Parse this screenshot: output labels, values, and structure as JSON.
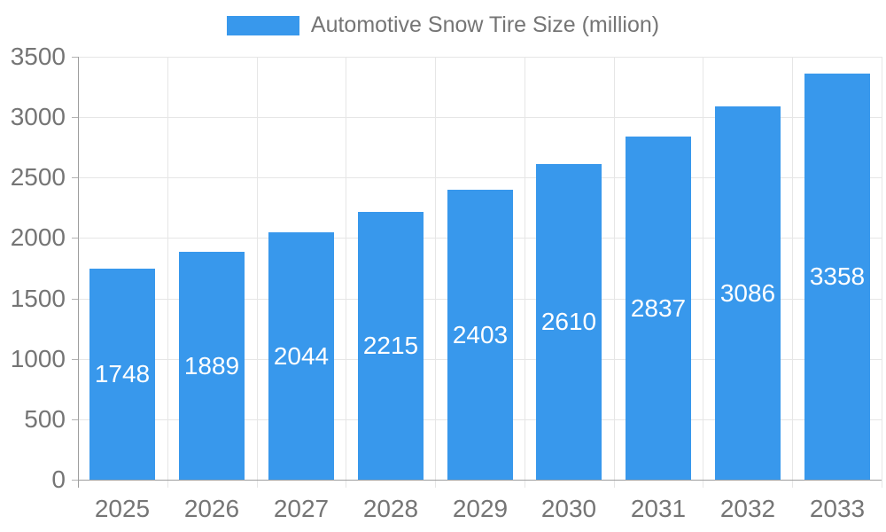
{
  "legend": {
    "label": "Automotive Snow Tire Size (million)",
    "swatch_color": "#3898ec"
  },
  "chart_data": {
    "type": "bar",
    "title": "Automotive Snow Tire Size (million)",
    "categories": [
      "2025",
      "2026",
      "2027",
      "2028",
      "2029",
      "2030",
      "2031",
      "2032",
      "2033"
    ],
    "series": [
      {
        "name": "Automotive Snow Tire Size (million)",
        "color": "#3898ec",
        "values": [
          1748,
          1889,
          2044,
          2215,
          2403,
          2610,
          2837,
          3086,
          3358
        ]
      }
    ],
    "xlabel": "",
    "ylabel": "",
    "ylim": [
      0,
      3500
    ],
    "yticks": [
      0,
      500,
      1000,
      1500,
      2000,
      2500,
      3000,
      3500
    ],
    "grid": true,
    "legend_position": "top-center",
    "value_labels": {
      "visible": true,
      "position": "bar-center",
      "color": "#ffffff"
    },
    "colors": {
      "bar": "#3898ec",
      "axis_text": "#757575",
      "grid_line": "#e6e6e6",
      "axis_line": "#9e9e9e",
      "tick_mark": "#b3b3b3",
      "value_label": "#ffffff",
      "background": "#ffffff"
    }
  }
}
